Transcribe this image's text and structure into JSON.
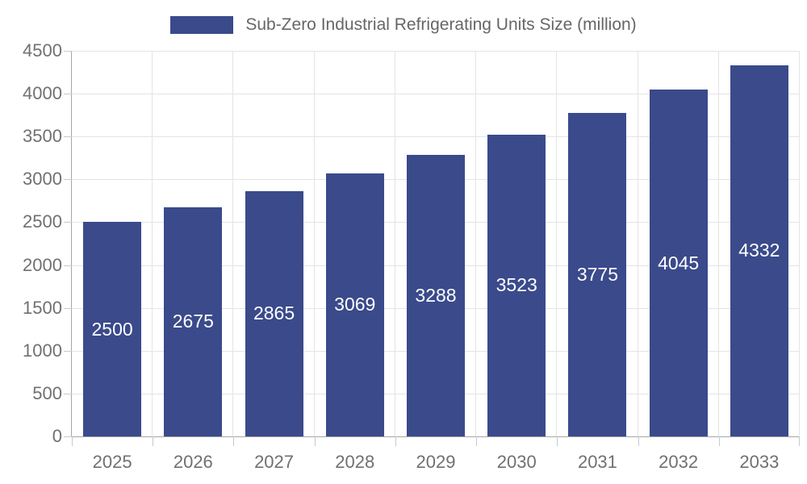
{
  "legend": {
    "series_label": "Sub-Zero Industrial Refrigerating Units Size (million)"
  },
  "chart_data": {
    "type": "bar",
    "title": "Sub-Zero Industrial Refrigerating Units Size (million)",
    "categories": [
      "2025",
      "2026",
      "2027",
      "2028",
      "2029",
      "2030",
      "2031",
      "2032",
      "2033"
    ],
    "series": [
      {
        "name": "Sub-Zero Industrial Refrigerating Units Size (million)",
        "values": [
          2500,
          2675,
          2865,
          3069,
          3288,
          3523,
          3775,
          4045,
          4332
        ]
      }
    ],
    "bar_value_labels": [
      "2500",
      "2675",
      "2865",
      "3069",
      "3288",
      "3523",
      "3775",
      "4045",
      "4332"
    ],
    "xlabel": "",
    "ylabel": "",
    "ylim": [
      0,
      4500
    ],
    "yticks": [
      0,
      500,
      1000,
      1500,
      2000,
      2500,
      3000,
      3500,
      4000,
      4500
    ],
    "grid": true,
    "legend_position": "top-center",
    "colors": {
      "bar": "#3A4A8B",
      "bar_value_label": "#ffffff",
      "axis_text": "#707070",
      "legend_text": "#666666",
      "grid_line": "#e4e4e4",
      "axis_line": "#a6a6a6",
      "tick_line": "#c5c9d2",
      "background": "#ffffff"
    }
  }
}
